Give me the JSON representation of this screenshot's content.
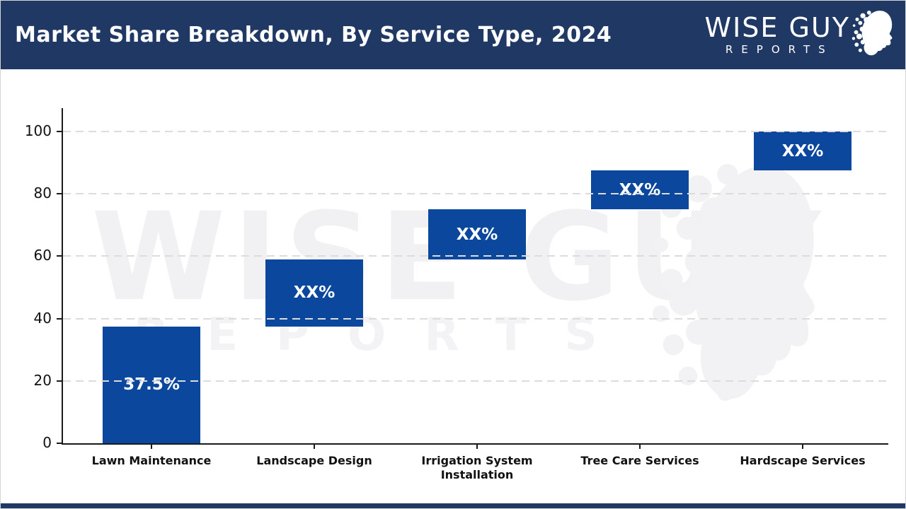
{
  "header": {
    "title": "Market Share Breakdown, By Service Type, 2024",
    "logo": {
      "line1": "WISE GUY",
      "line2": "REPORTS"
    }
  },
  "watermark": {
    "line1": "WISE GUY",
    "line2": "REPORTS"
  },
  "colors": {
    "header_navy": "#1f3864",
    "bar_blue": "#0b479d",
    "watermark_gray": "#f2f2f4",
    "gridline_gray": "#dcdcdc"
  },
  "chart_data": {
    "type": "bar",
    "variant": "waterfall",
    "title": "Market Share Breakdown, By Service Type, 2024",
    "categories": [
      "Lawn Maintenance",
      "Landscape Design",
      "Irrigation System Installation",
      "Tree Care Services",
      "Hardscape Services"
    ],
    "segments": [
      {
        "label": "37.5%",
        "start": 0,
        "end": 37.5
      },
      {
        "label": "XX%",
        "start": 37.5,
        "end": 59
      },
      {
        "label": "XX%",
        "start": 59,
        "end": 75
      },
      {
        "label": "XX%",
        "start": 75,
        "end": 87.5
      },
      {
        "label": "XX%",
        "start": 87.5,
        "end": 100
      }
    ],
    "yticks": [
      0,
      20,
      40,
      60,
      80,
      100
    ],
    "ylim": [
      0,
      107.5
    ],
    "xlabel": "",
    "ylabel": "",
    "grid": "horizontal-dashed",
    "legend": "none",
    "bar_color": "#0b479d"
  }
}
